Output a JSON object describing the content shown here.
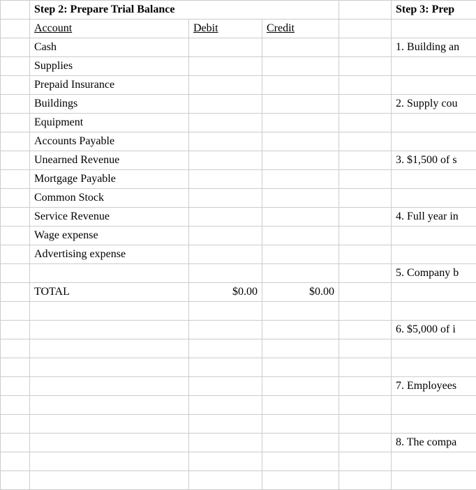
{
  "step2_title": "Step 2: Prepare Trial Balance",
  "step3_title": "Step 3: Prep",
  "headers": {
    "account": "Account",
    "debit": "Debit",
    "credit": "Credit"
  },
  "accounts": [
    "Cash",
    "Supplies",
    "Prepaid Insurance",
    "Buildings",
    "Equipment",
    "Accounts Payable",
    "Unearned Revenue",
    "Mortgage Payable",
    "Common Stock",
    "Service Revenue",
    "Wage expense",
    "Advertising expense"
  ],
  "total_label": "TOTAL",
  "total_debit": "$0.00",
  "total_credit": "$0.00",
  "notes": {
    "n1": "1. Building an",
    "n2": "2. Supply cou",
    "n3": "3. $1,500 of s",
    "n4": "4. Full year in",
    "n5": "5. Company b",
    "n6": "6. $5,000 of i",
    "n7": "7. Employees",
    "n8": "8. The compa"
  },
  "colors": {
    "border": "#cccccc",
    "background": "#ffffff",
    "text": "#000000"
  },
  "font": {
    "family": "Times New Roman",
    "size_pt": 12
  }
}
